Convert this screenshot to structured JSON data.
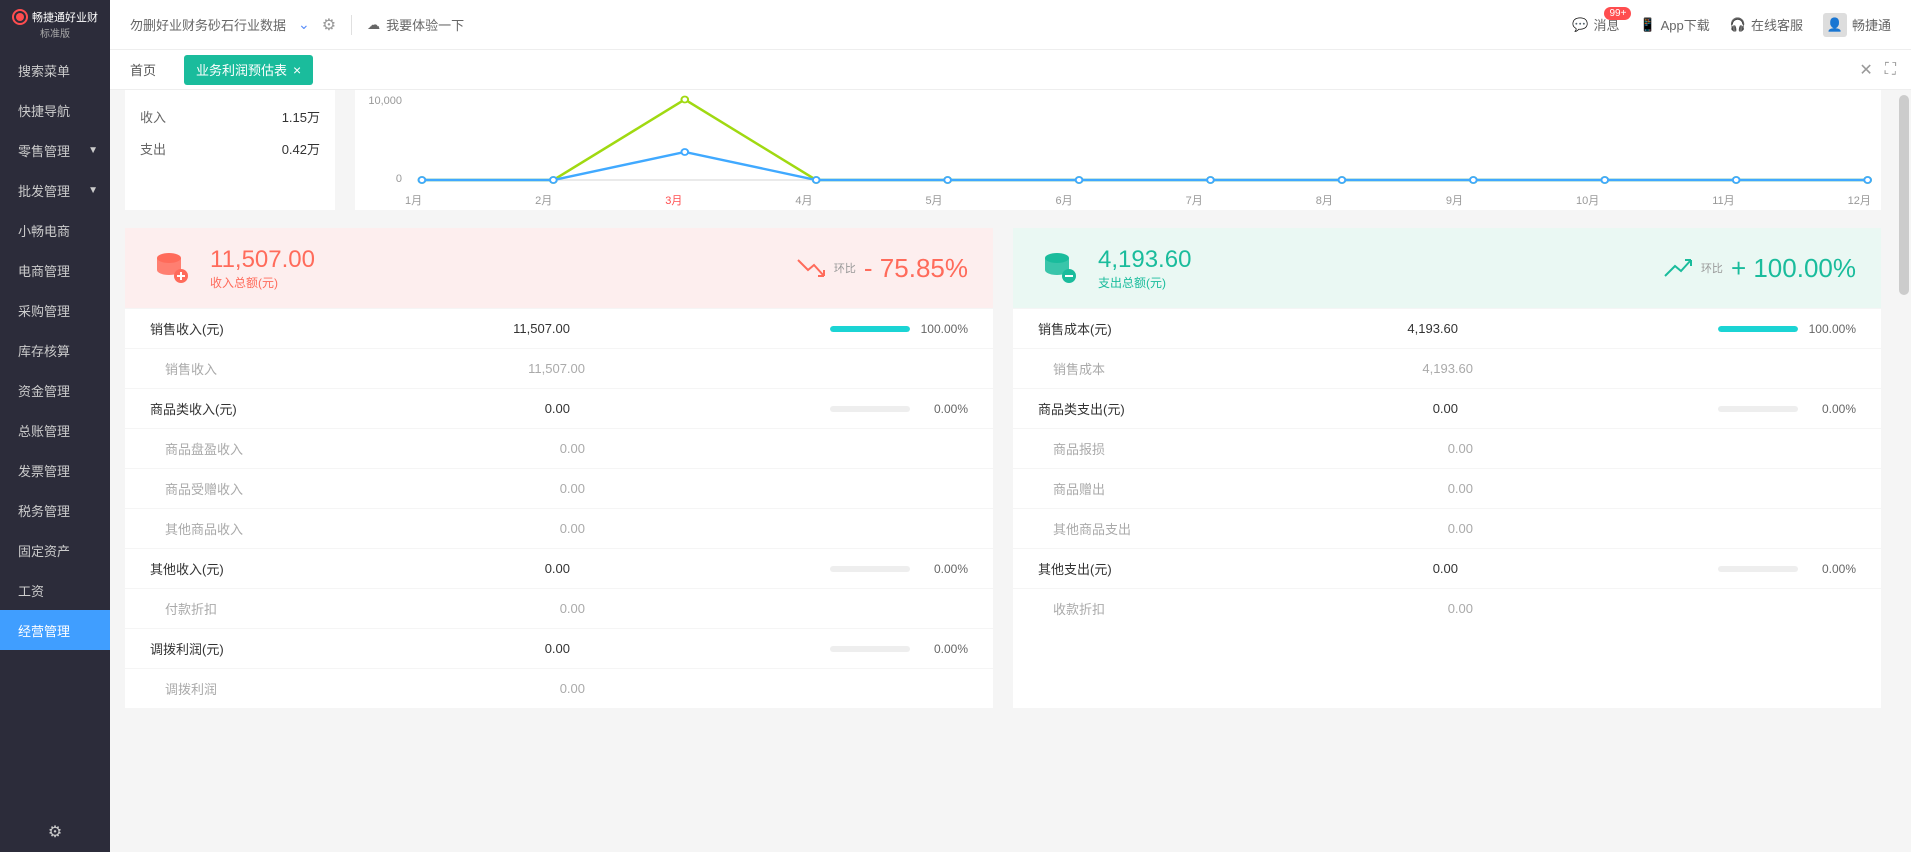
{
  "header": {
    "brand": "畅捷通好业财",
    "brand_sub": "标准版",
    "org_name": "勿删好业财务砂石行业数据",
    "try_label": "我要体验一下",
    "msg_label": "消息",
    "msg_badge": "99+",
    "app_label": "App下载",
    "service_label": "在线客服",
    "user_label": "畅捷通"
  },
  "tabs": {
    "home": "首页",
    "active": "业务利润预估表"
  },
  "sidebar": {
    "items": [
      {
        "label": "搜索菜单",
        "caret": false
      },
      {
        "label": "快捷导航",
        "caret": false
      },
      {
        "label": "零售管理",
        "caret": true
      },
      {
        "label": "批发管理",
        "caret": true
      },
      {
        "label": "小畅电商",
        "caret": false
      },
      {
        "label": "电商管理",
        "caret": false
      },
      {
        "label": "采购管理",
        "caret": false
      },
      {
        "label": "库存核算",
        "caret": false
      },
      {
        "label": "资金管理",
        "caret": false
      },
      {
        "label": "总账管理",
        "caret": false
      },
      {
        "label": "发票管理",
        "caret": false
      },
      {
        "label": "税务管理",
        "caret": false
      },
      {
        "label": "固定资产",
        "caret": false
      },
      {
        "label": "工资",
        "caret": false
      },
      {
        "label": "经营管理",
        "caret": false,
        "active": true
      }
    ]
  },
  "summary": {
    "income_label": "收入",
    "income_value": "1.15万",
    "expense_label": "支出",
    "expense_value": "0.42万"
  },
  "chart": {
    "y_ticks": [
      "10,000",
      "0"
    ],
    "x_labels": [
      "1月",
      "2月",
      "3月",
      "4月",
      "5月",
      "6月",
      "7月",
      "8月",
      "9月",
      "10月",
      "11月",
      "12月"
    ],
    "highlight_index": 2,
    "series": [
      {
        "name": "line1",
        "color": "#a0d911",
        "points": [
          0,
          0,
          11500,
          0,
          0,
          0,
          0,
          0,
          0,
          0,
          0,
          0
        ]
      },
      {
        "name": "line2",
        "color": "#40a9ff",
        "points": [
          0,
          0,
          4000,
          0,
          0,
          0,
          0,
          0,
          0,
          0,
          0,
          0
        ]
      }
    ],
    "y_max": 12000
  },
  "panels": {
    "income": {
      "total_amount": "11,507.00",
      "total_sub": "收入总额(元)",
      "trend_label": "环比",
      "change": "- 75.85%",
      "color": "#ff6b5b",
      "rows": [
        {
          "type": "main",
          "label": "销售收入(元)",
          "value": "11,507.00",
          "pct": "100.00%",
          "fill": 100
        },
        {
          "type": "sub",
          "label": "销售收入",
          "value": "11,507.00"
        },
        {
          "type": "main",
          "label": "商品类收入(元)",
          "value": "0.00",
          "pct": "0.00%",
          "fill": 0
        },
        {
          "type": "sub",
          "label": "商品盘盈收入",
          "value": "0.00"
        },
        {
          "type": "sub",
          "label": "商品受赠收入",
          "value": "0.00"
        },
        {
          "type": "sub",
          "label": "其他商品收入",
          "value": "0.00"
        },
        {
          "type": "main",
          "label": "其他收入(元)",
          "value": "0.00",
          "pct": "0.00%",
          "fill": 0
        },
        {
          "type": "sub",
          "label": "付款折扣",
          "value": "0.00"
        },
        {
          "type": "main",
          "label": "调拨利润(元)",
          "value": "0.00",
          "pct": "0.00%",
          "fill": 0
        },
        {
          "type": "sub",
          "label": "调拨利润",
          "value": "0.00"
        }
      ]
    },
    "expense": {
      "total_amount": "4,193.60",
      "total_sub": "支出总额(元)",
      "trend_label": "环比",
      "change": "+ 100.00%",
      "color": "#1abc9c",
      "rows": [
        {
          "type": "main",
          "label": "销售成本(元)",
          "value": "4,193.60",
          "pct": "100.00%",
          "fill": 100
        },
        {
          "type": "sub",
          "label": "销售成本",
          "value": "4,193.60"
        },
        {
          "type": "main",
          "label": "商品类支出(元)",
          "value": "0.00",
          "pct": "0.00%",
          "fill": 0
        },
        {
          "type": "sub",
          "label": "商品报损",
          "value": "0.00"
        },
        {
          "type": "sub",
          "label": "商品赠出",
          "value": "0.00"
        },
        {
          "type": "sub",
          "label": "其他商品支出",
          "value": "0.00"
        },
        {
          "type": "main",
          "label": "其他支出(元)",
          "value": "0.00",
          "pct": "0.00%",
          "fill": 0
        },
        {
          "type": "sub",
          "label": "收款折扣",
          "value": "0.00"
        }
      ]
    }
  }
}
